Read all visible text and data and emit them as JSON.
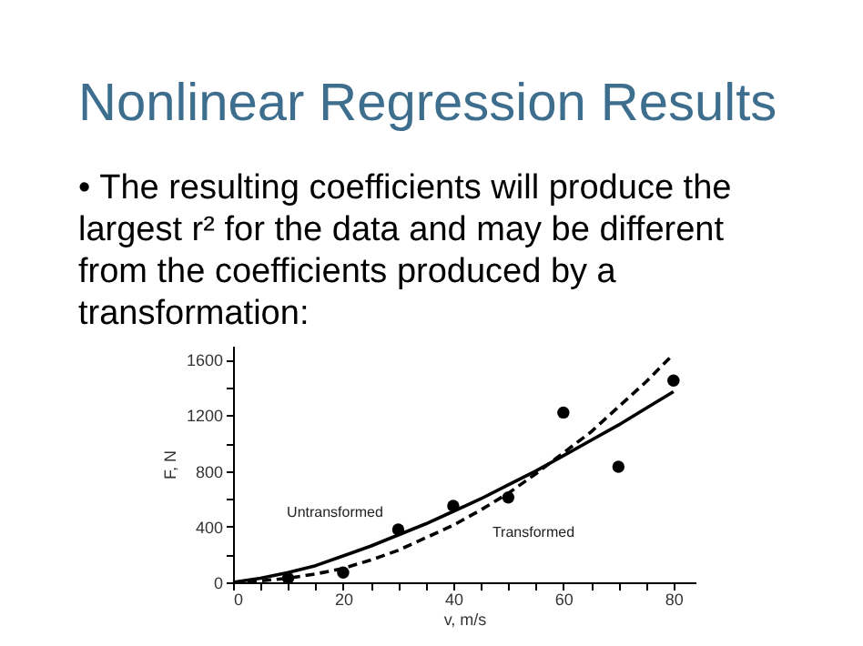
{
  "chart_data": {
    "type": "scatter",
    "title": "Nonlinear Regression Results",
    "subtitle": "• The resulting coefficients will produce the\nlargest r² for the data and may be different\nfrom the coefficients produced by a\ntransformation:",
    "xlabel": "v, m/s",
    "ylabel": "F, N",
    "xlim": [
      0,
      84
    ],
    "ylim": [
      0,
      1700
    ],
    "xticks": [
      0,
      {
        "value": 5,
        "label": null
      },
      {
        "value": 10,
        "label": null
      },
      {
        "value": 15,
        "label": null
      },
      20,
      {
        "value": 25,
        "label": null
      },
      {
        "value": 30,
        "label": null
      },
      {
        "value": 35,
        "label": null
      },
      40,
      {
        "value": 45,
        "label": null
      },
      {
        "value": 50,
        "label": null
      },
      {
        "value": 55,
        "label": null
      },
      60,
      {
        "value": 65,
        "label": null
      },
      {
        "value": 70,
        "label": null
      },
      {
        "value": 75,
        "label": null
      },
      80
    ],
    "yticks": [
      0,
      {
        "value": 200,
        "label": null
      },
      400,
      {
        "value": 600,
        "label": null
      },
      800,
      {
        "value": 1000,
        "label": null
      },
      1200,
      {
        "value": 1400,
        "label": null
      },
      1600
    ],
    "grid": false,
    "series": [
      {
        "color": "#000000",
        "marker": "circle",
        "x": [
          10,
          20,
          30,
          40,
          50,
          60,
          70,
          80
        ],
        "values": [
          30,
          70,
          380,
          550,
          610,
          1220,
          830,
          1450
        ]
      },
      {
        "type": "line",
        "color": "#000000",
        "line_style": "solid",
        "marker": "none",
        "x": [
          0,
          5,
          10,
          15,
          20,
          25,
          30,
          35,
          40,
          45,
          50,
          55,
          60,
          65,
          70,
          75,
          80
        ],
        "values": [
          0,
          30,
          70,
          120,
          190,
          260,
          340,
          420,
          510,
          600,
          700,
          800,
          910,
          1020,
          1130,
          1250,
          1370
        ]
      },
      {
        "type": "line",
        "color": "#000000",
        "line_style": "dashed",
        "marker": "none",
        "x": [
          0,
          5,
          10,
          15,
          20,
          25,
          30,
          35,
          40,
          45,
          50,
          55,
          60,
          65,
          70,
          75,
          80
        ],
        "values": [
          0,
          10,
          30,
          60,
          100,
          160,
          230,
          320,
          410,
          520,
          640,
          780,
          930,
          1080,
          1260,
          1440,
          1640
        ]
      }
    ],
    "annotations": [
      "Untransformed",
      "Transformed"
    ]
  }
}
